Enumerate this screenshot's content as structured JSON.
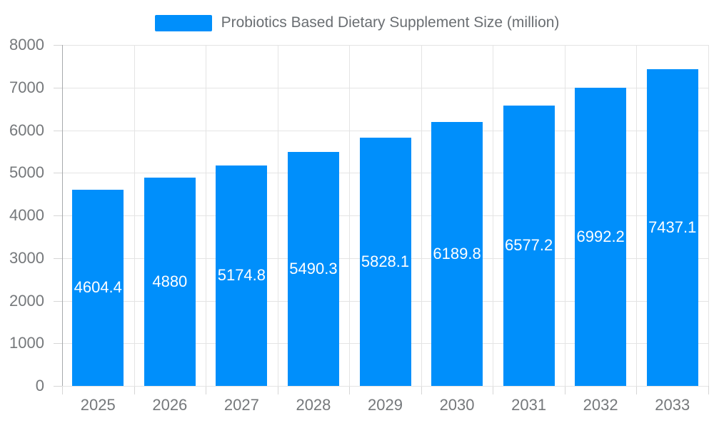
{
  "chart_data": {
    "type": "bar",
    "title": "Probiotics Based Dietary Supplement Size (million)",
    "categories": [
      "2025",
      "2026",
      "2027",
      "2028",
      "2029",
      "2030",
      "2031",
      "2032",
      "2033"
    ],
    "series": [
      {
        "name": "Probiotics Based Dietary Supplement Size (million)",
        "values": [
          4604.4,
          4880,
          5174.8,
          5490.3,
          5828.1,
          6189.8,
          6577.2,
          6992.2,
          7437.1
        ]
      }
    ],
    "data_labels": [
      "4604.4",
      "4880",
      "5174.8",
      "5490.3",
      "5828.1",
      "6189.8",
      "6577.2",
      "6992.2",
      "7437.1"
    ],
    "xlabel": "",
    "ylabel": "",
    "ylim": [
      0,
      8000
    ],
    "y_ticks": [
      0,
      1000,
      2000,
      3000,
      4000,
      5000,
      6000,
      7000,
      8000
    ],
    "grid": true,
    "legend_position": "top",
    "colors": {
      "bar": "#008FFB",
      "data_label": "#FFFFFF",
      "axis_text": "#75787B",
      "title": "#6A6E72",
      "grid": "#E4E4E4",
      "axis_line": "#A6A9AC",
      "tick": "#D6D6D6"
    }
  },
  "legend": {
    "label": "Probiotics Based Dietary Supplement Size (million)"
  }
}
